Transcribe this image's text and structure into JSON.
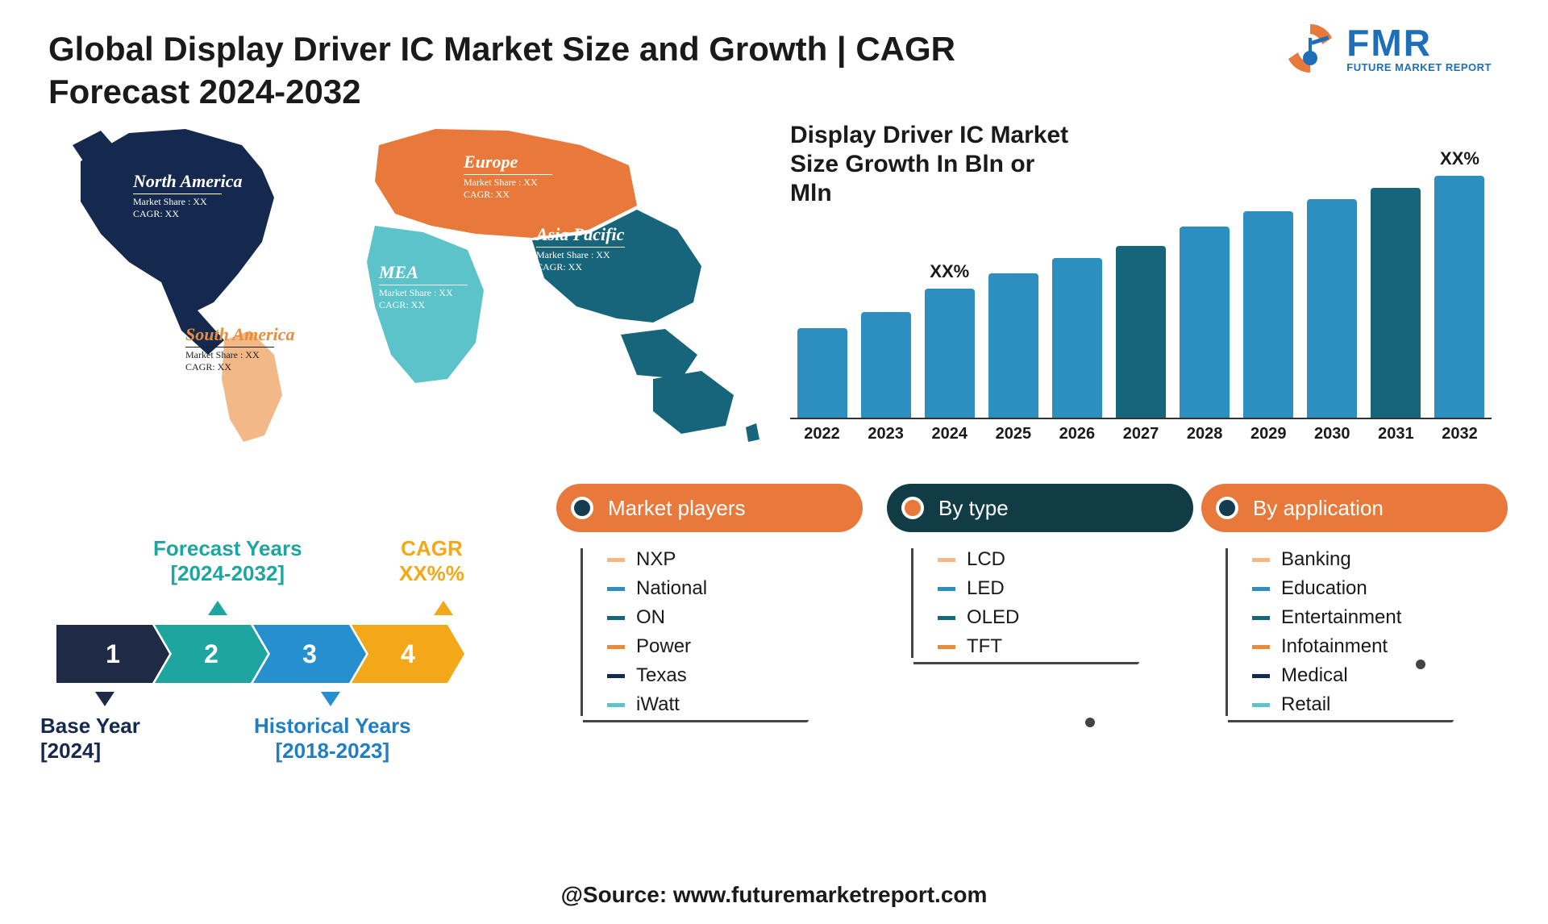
{
  "title": "Global Display Driver IC Market Size and Growth | CAGR Forecast 2024-2032",
  "logo": {
    "brand": "FMR",
    "subtitle": "FUTURE MARKET REPORT"
  },
  "source": "@Source: www.futuremarketreport.com",
  "map": {
    "regions": [
      {
        "id": "na",
        "name": "North America",
        "share": "Market Share : XX",
        "cagr": "CAGR: XX",
        "color": "#15294f"
      },
      {
        "id": "sa",
        "name": "South America",
        "share": "Market Share : XX",
        "cagr": "CAGR: XX",
        "color": "#f2b887"
      },
      {
        "id": "eu",
        "name": "Europe",
        "share": "Market Share : XX",
        "cagr": "CAGR: XX",
        "color": "#e9793b"
      },
      {
        "id": "mea",
        "name": "MEA",
        "share": "Market Share : XX",
        "cagr": "CAGR: XX",
        "color": "#5bc3c9"
      },
      {
        "id": "ap",
        "name": "Asia Pacific",
        "share": "Market Share : XX",
        "cagr": "CAGR: XX",
        "color": "#16657a"
      }
    ]
  },
  "chart": {
    "title": "Display Driver IC Market Size Growth In Bln or Mln",
    "type": "bar",
    "years": [
      "2022",
      "2023",
      "2024",
      "2025",
      "2026",
      "2027",
      "2028",
      "2029",
      "2030",
      "2031",
      "2032"
    ],
    "values": [
      115,
      135,
      165,
      185,
      205,
      220,
      245,
      265,
      280,
      295,
      310
    ],
    "ymax": 310,
    "colors": {
      "default": "#2d8fbf",
      "highlight": "#16657a",
      "highlight_years": [
        "2027",
        "2031"
      ]
    },
    "annotations": [
      {
        "year": "2024",
        "text": "XX%"
      },
      {
        "year": "2032",
        "text": "XX%"
      }
    ],
    "axis_color": "#333333",
    "label_fontsize": 20
  },
  "timeline": {
    "labels": {
      "base": {
        "title": "Base Year",
        "value": "[2024]",
        "color": "#15294f"
      },
      "forecast": {
        "title": "Forecast Years",
        "value": "[2024-2032]",
        "color": "#1fa5a0"
      },
      "historical": {
        "title": "Historical Years",
        "value": "[2018-2023]",
        "color": "#207fc4"
      },
      "cagr": {
        "title": "CAGR",
        "value": "XX%%",
        "color": "#f2a818"
      }
    },
    "steps": [
      {
        "num": "1",
        "color": "#1f2b46"
      },
      {
        "num": "2",
        "color": "#1fa5a0"
      },
      {
        "num": "3",
        "color": "#2690cf"
      },
      {
        "num": "4",
        "color": "#f2a818"
      }
    ]
  },
  "categories": [
    {
      "id": "players",
      "title": "Market players",
      "pill_color": "#e9793b",
      "dot_color": "#163b4d",
      "items": [
        "NXP",
        "National",
        "ON",
        "Power",
        "Texas",
        "iWatt"
      ],
      "tick_colors": [
        "#f2b887",
        "#2d8fbf",
        "#16657a",
        "#e78c3a",
        "#15294f",
        "#5bc3c9"
      ]
    },
    {
      "id": "type",
      "title": "By type",
      "pill_color": "#123c45",
      "dot_color": "#e9793b",
      "items": [
        "LCD",
        "LED",
        "OLED",
        "TFT"
      ],
      "tick_colors": [
        "#f2b887",
        "#2d8fbf",
        "#16657a",
        "#e78c3a"
      ]
    },
    {
      "id": "application",
      "title": "By application",
      "pill_color": "#e9793b",
      "dot_color": "#163b4d",
      "items": [
        "Banking",
        "Education",
        "Entertainment",
        "Infotainment",
        "Medical",
        "Retail"
      ],
      "tick_colors": [
        "#f2b887",
        "#2d8fbf",
        "#16657a",
        "#e78c3a",
        "#15294f",
        "#5bc3c9"
      ]
    }
  ],
  "category_positions": [
    690,
    1100,
    1490
  ]
}
